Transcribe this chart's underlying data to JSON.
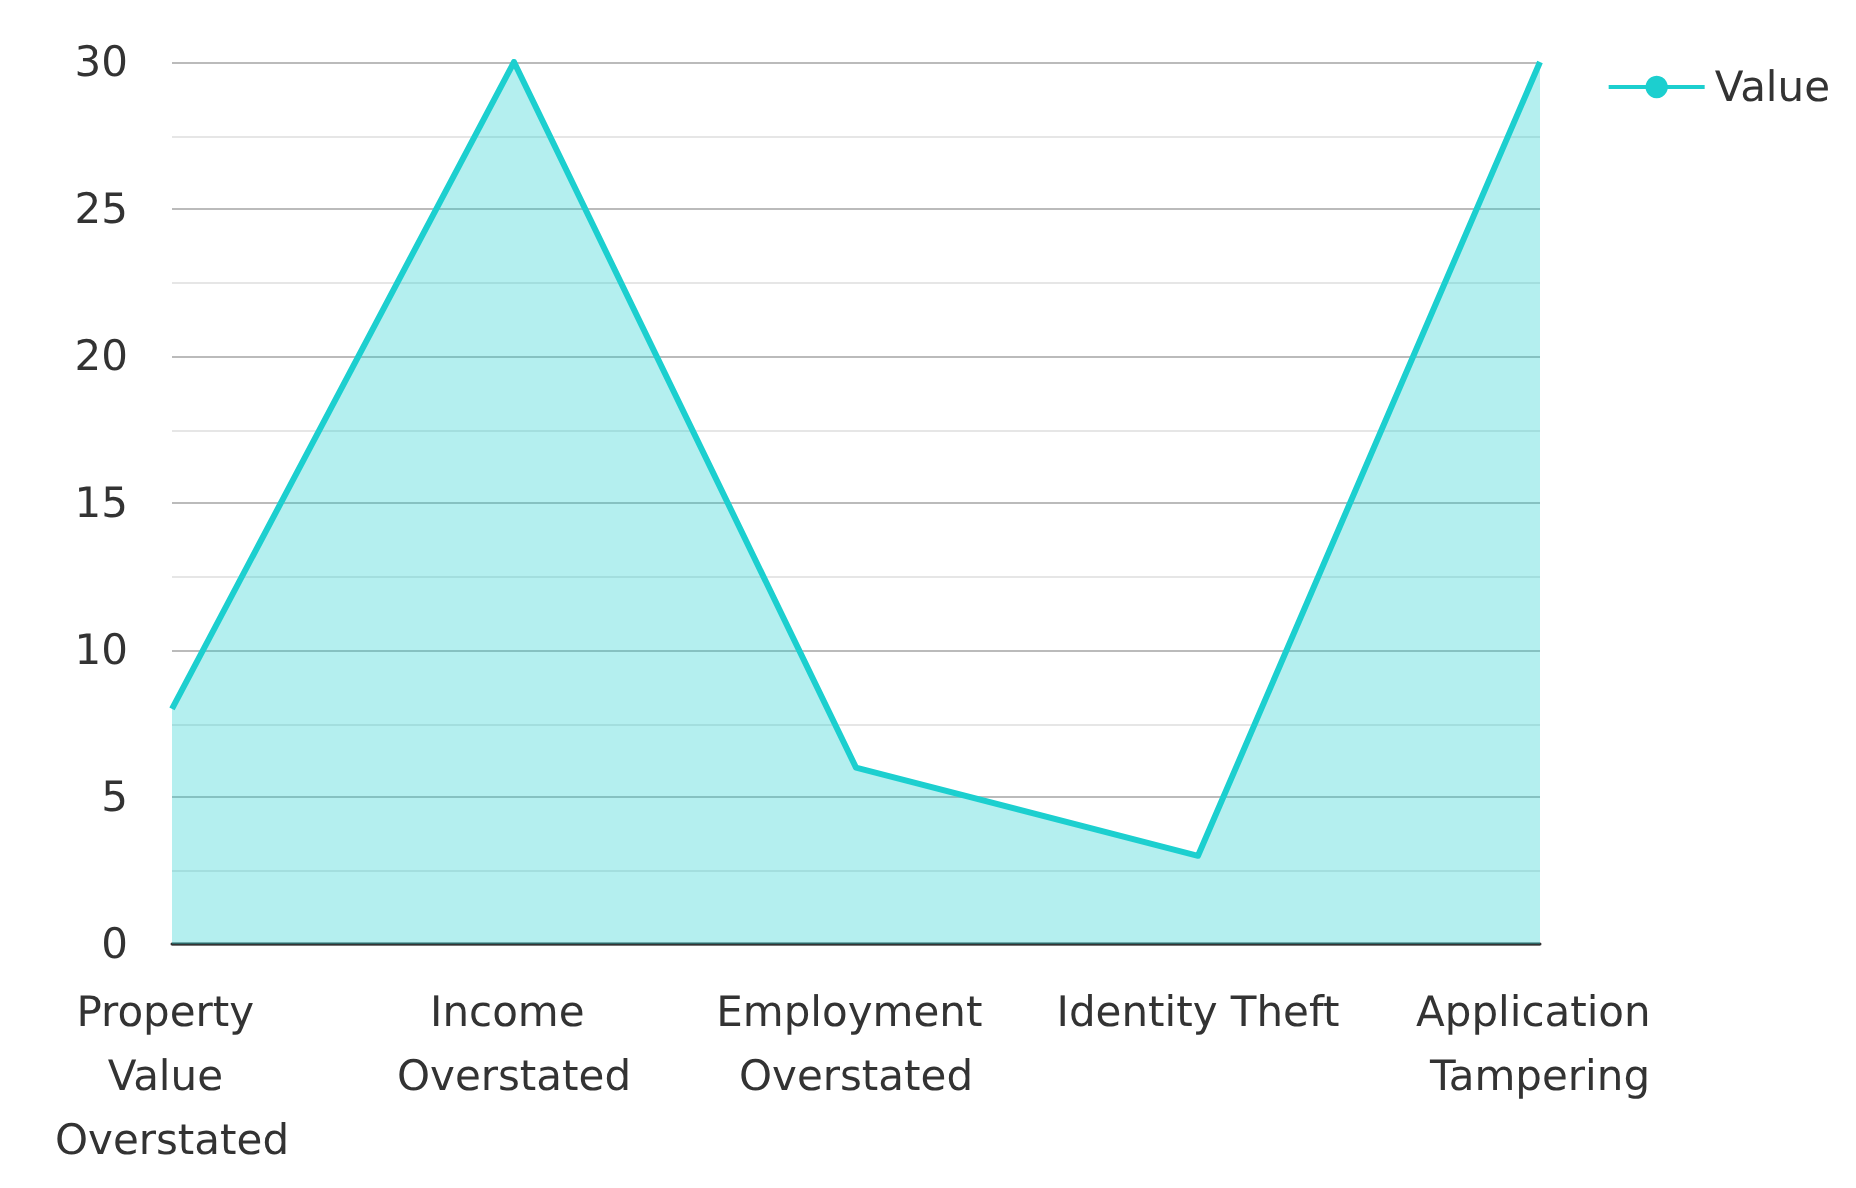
{
  "chart_data": {
    "type": "area",
    "categories": [
      "Property Value Overstated",
      "Income Overstated",
      "Employment Overstated",
      "Identity Theft",
      "Application Tampering"
    ],
    "series": [
      {
        "name": "Value",
        "color": "#1ccfcf",
        "values": [
          8,
          30,
          6,
          3,
          30
        ]
      }
    ],
    "ylim": [
      0,
      30
    ],
    "yticks": [
      0,
      5,
      10,
      15,
      20,
      25,
      30
    ],
    "grid": "y",
    "legend": "top right",
    "marker": "none"
  }
}
